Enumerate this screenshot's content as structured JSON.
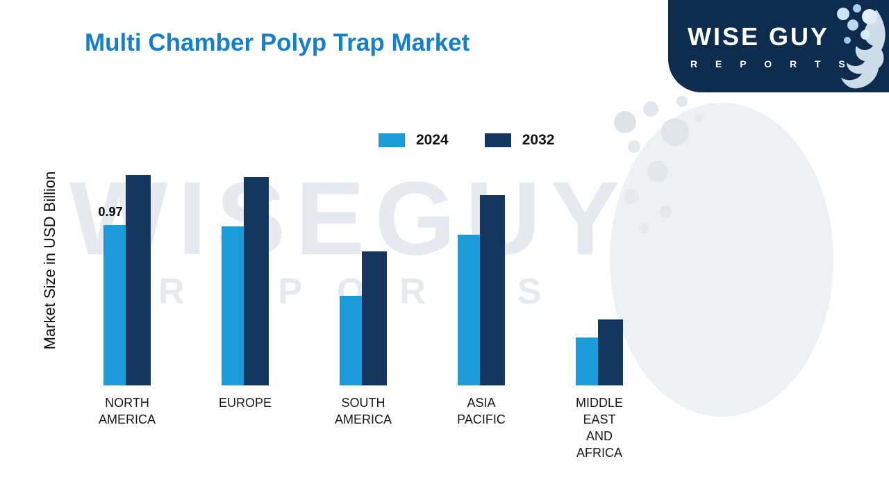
{
  "title": "Multi Chamber Polyp Trap Market",
  "ylabel": "Market Size in USD Billion",
  "watermark": {
    "line1": "WISEGUY",
    "line2": "REPORTS"
  },
  "logo": {
    "line1": "WISE GUY",
    "line2": "R E P O R T S"
  },
  "legend": [
    {
      "label": "2024",
      "color": "#1b9cd8"
    },
    {
      "label": "2032",
      "color": "#15375f"
    }
  ],
  "chart_data": {
    "type": "bar",
    "title": "Multi Chamber Polyp Trap Market",
    "xlabel": "",
    "ylabel": "Market Size in USD Billion",
    "ylim": [
      0,
      1.3
    ],
    "grid": false,
    "legend_position": "top",
    "categories": [
      "NORTH AMERICA",
      "EUROPE",
      "SOUTH AMERICA",
      "ASIA PACIFIC",
      "MIDDLE EAST AND AFRICA"
    ],
    "category_display": [
      "NORTH\nAMERICA",
      "EUROPE",
      "SOUTH\nAMERICA",
      "ASIA\nPACIFIC",
      "MIDDLE\nEAST\nAND\nAFRICA"
    ],
    "series": [
      {
        "name": "2024",
        "color": "#1b9cd8",
        "values": [
          0.97,
          0.96,
          0.54,
          0.91,
          0.29
        ]
      },
      {
        "name": "2032",
        "color": "#15375f",
        "values": [
          1.27,
          1.26,
          0.81,
          1.15,
          0.4
        ]
      }
    ],
    "annotations": [
      {
        "series": "2024",
        "category": "NORTH AMERICA",
        "text": "0.97"
      }
    ]
  }
}
